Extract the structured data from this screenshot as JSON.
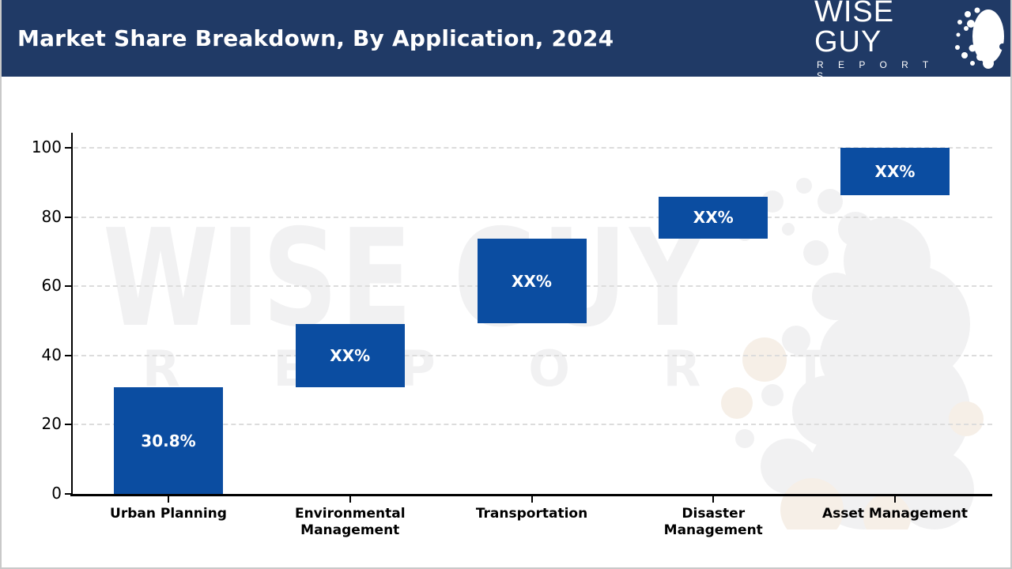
{
  "header": {
    "title": "Market Share Breakdown, By Application, 2024",
    "bg_color": "#203A66",
    "logo": {
      "line1": "WISE GUY",
      "line2": "R E P O R T S"
    }
  },
  "watermark": {
    "line1": "WISE GUY",
    "line2": "R E P O R T S"
  },
  "chart_data": {
    "type": "bar",
    "variant": "waterfall",
    "title": "Market Share Breakdown, By Application, 2024",
    "categories": [
      "Urban Planning",
      "Environmental\nManagement",
      "Transportation",
      "Disaster\nManagement",
      "Asset Management"
    ],
    "segments": [
      {
        "category": "Urban Planning",
        "start": 0,
        "end": 30.8,
        "label": "30.8%"
      },
      {
        "category": "Environmental Management",
        "start": 30.8,
        "end": 49.2,
        "label": "XX%"
      },
      {
        "category": "Transportation",
        "start": 49.2,
        "end": 73.8,
        "label": "XX%"
      },
      {
        "category": "Disaster Management",
        "start": 73.8,
        "end": 85.9,
        "label": "XX%"
      },
      {
        "category": "Asset Management",
        "start": 86.3,
        "end": 100,
        "label": "XX%"
      }
    ],
    "ylim": [
      0,
      100
    ],
    "yticks": [
      0,
      20,
      40,
      60,
      80,
      100
    ],
    "xlabel": "",
    "ylabel": "",
    "grid": "horizontal-dashed",
    "legend": "none",
    "bar_color": "#0B4DA1",
    "bar_label_color": "#FFFFFF",
    "axis_color": "#000000",
    "gridline_color": "#DCDCDC"
  }
}
